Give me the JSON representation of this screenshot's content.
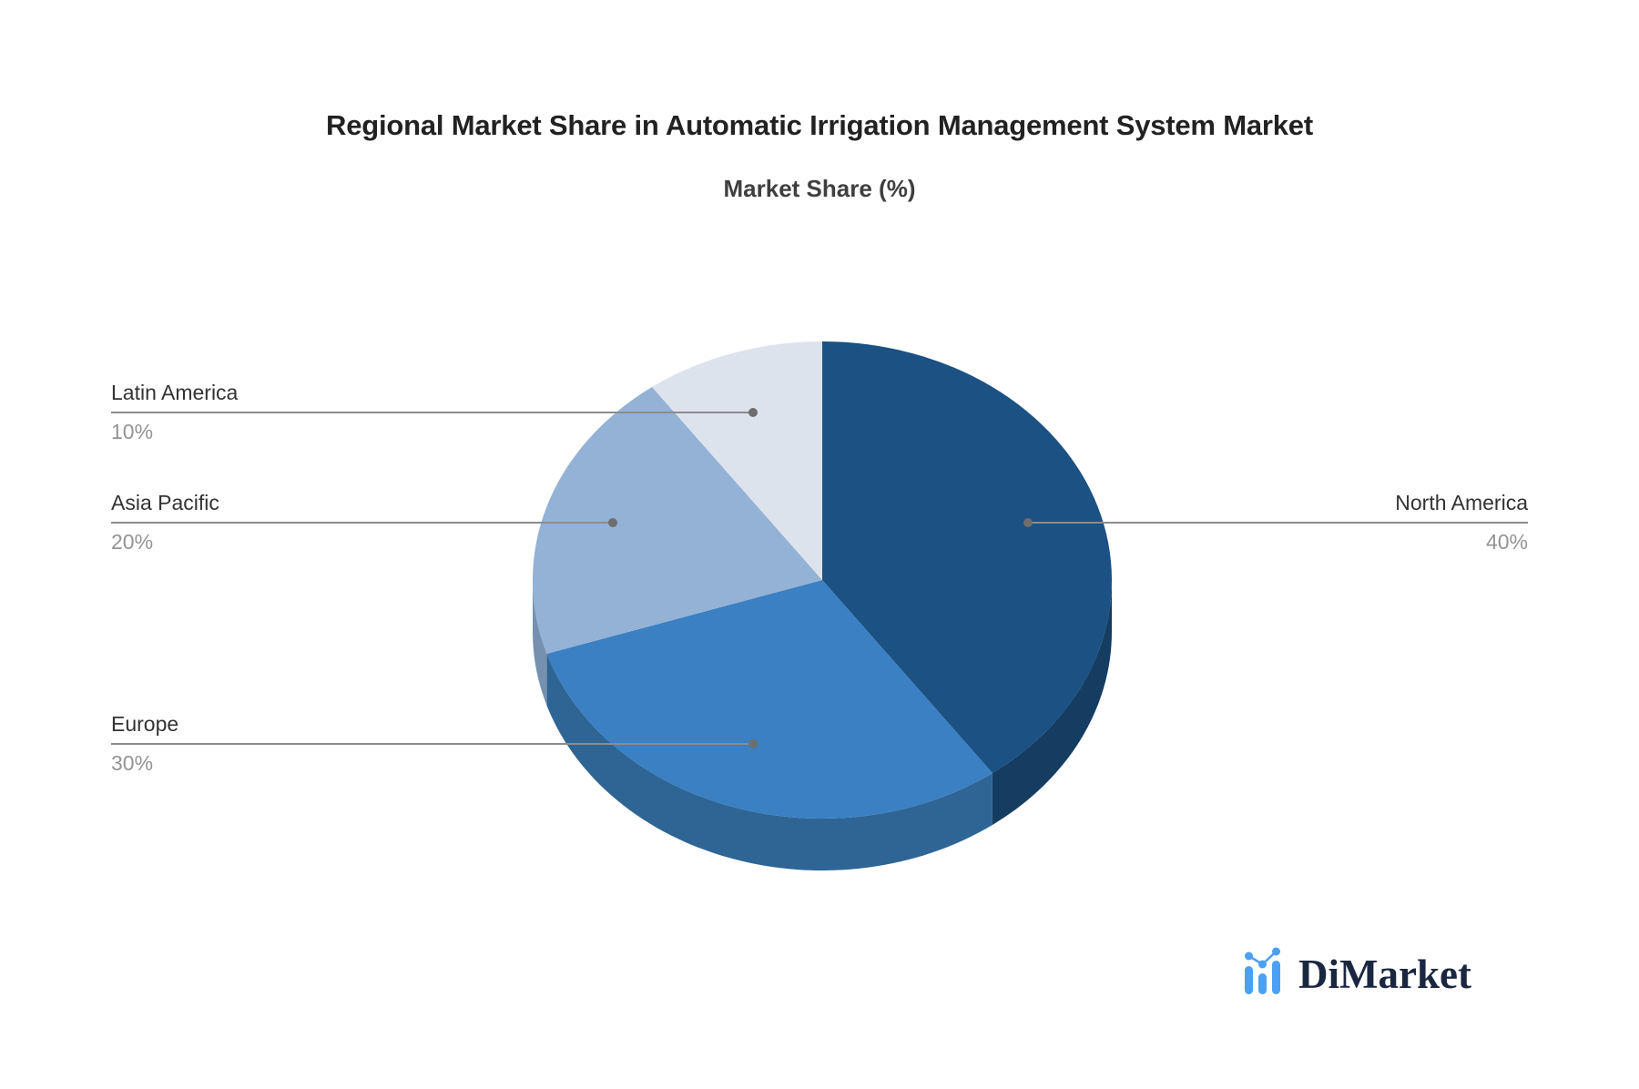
{
  "page": {
    "background": "#FFFFFF"
  },
  "chart_data": {
    "type": "pie",
    "style": "3d",
    "title": "Regional Market Share in Automatic Irrigation Management System Market",
    "subtitle": "Market Share (%)",
    "unit": "%",
    "direction": "clockwise",
    "start_angle_deg": 0,
    "legend_position": "none",
    "slices": [
      {
        "label": "North America",
        "value": 40,
        "pct_label": "40%",
        "color": "#1B5183",
        "side_color": "#153C61",
        "callout_side": "right"
      },
      {
        "label": "Europe",
        "value": 30,
        "pct_label": "30%",
        "color": "#3A80C2",
        "side_color": "#2E6595",
        "callout_side": "left"
      },
      {
        "label": "Asia Pacific",
        "value": 20,
        "pct_label": "20%",
        "color": "#93B2D6",
        "side_color": "#7591AF",
        "callout_side": "left"
      },
      {
        "label": "Latin America",
        "value": 10,
        "pct_label": "10%",
        "color": "#DDE3ED",
        "side_color": "#BAC4D3",
        "callout_side": "left"
      }
    ]
  },
  "callout_style": {
    "line_color": "#8C8C8C",
    "dot_color": "#6E6E6E",
    "label_color": "#333333",
    "pct_color": "#949494"
  },
  "branding": {
    "name": "DiMarket",
    "icon": "bar-line-chart-icon",
    "text_color": "#1B2740",
    "icon_color": "#4BA0F4"
  }
}
